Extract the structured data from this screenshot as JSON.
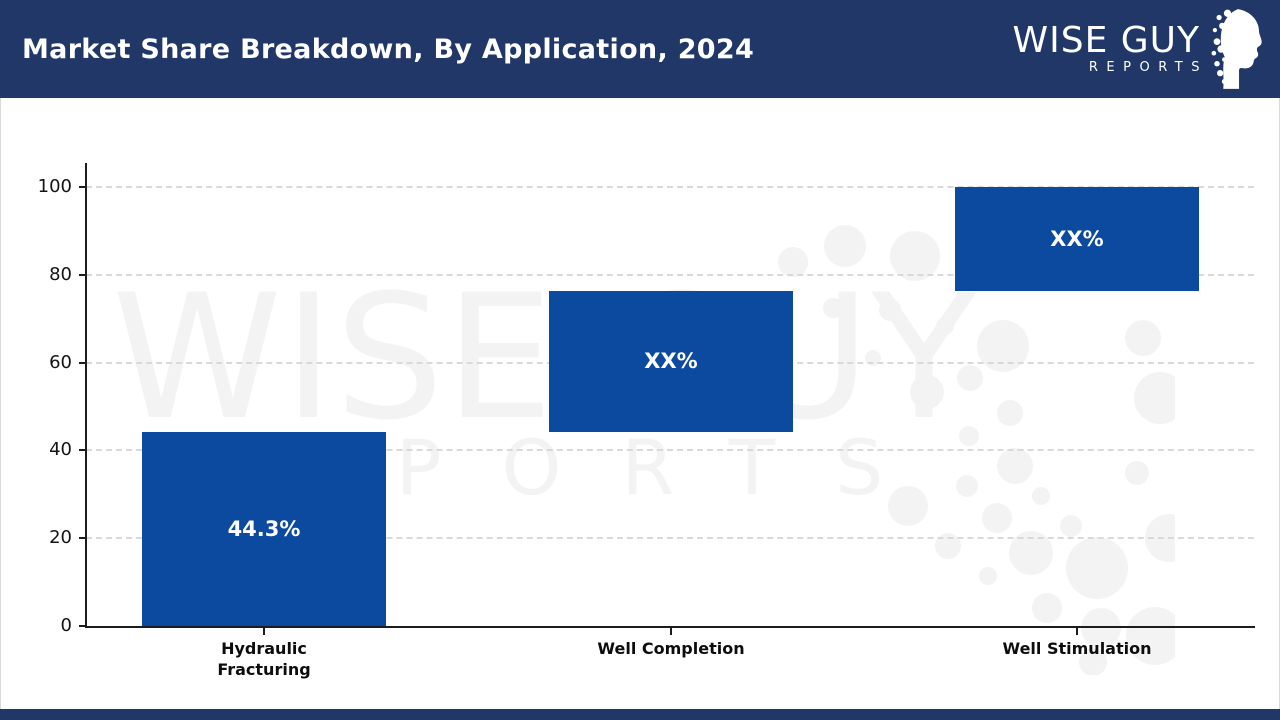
{
  "header": {
    "title": "Market Share Breakdown, By Application, 2024",
    "logo": {
      "name": "WISE GUY",
      "sub": "REPORTS"
    }
  },
  "watermark": {
    "big": "WISE GUY",
    "sub": "REPORTS"
  },
  "footer": {},
  "colors": {
    "header_bg": "#203768",
    "footer_bg": "#203768",
    "bar": "#0B4A9E",
    "grid": "#D9D9D9",
    "axis": "#1C1C1C",
    "watermark": "#F3F3F3",
    "frame_border": "#D9D9D9"
  },
  "chart_data": {
    "type": "bar",
    "subtype": "waterfall",
    "title": "Market Share Breakdown, By Application, 2024",
    "xlabel": "",
    "ylabel": "",
    "categories": [
      "Hydraulic Fracturing",
      "Well Completion",
      "Well Stimulation"
    ],
    "xtick_labels": [
      "Hydraulic\nFracturing",
      "Well Completion",
      "Well Stimulation"
    ],
    "segments": [
      {
        "category": "Hydraulic Fracturing",
        "start": 0,
        "end": 44.3,
        "value": 44.3,
        "label": "44.3%"
      },
      {
        "category": "Well Completion",
        "start": 44.3,
        "end": 76.3,
        "value": 32.0,
        "label": "XX%"
      },
      {
        "category": "Well Stimulation",
        "start": 76.3,
        "end": 100,
        "value": 23.7,
        "label": "XX%"
      }
    ],
    "yticks": [
      0,
      20,
      40,
      60,
      80,
      100
    ],
    "ylim": [
      0,
      105.5
    ],
    "bar_color": "#0B4A9E",
    "bar_label_color": "#FFFFFF",
    "grid": "horizontal-dashed",
    "legend": "none"
  }
}
